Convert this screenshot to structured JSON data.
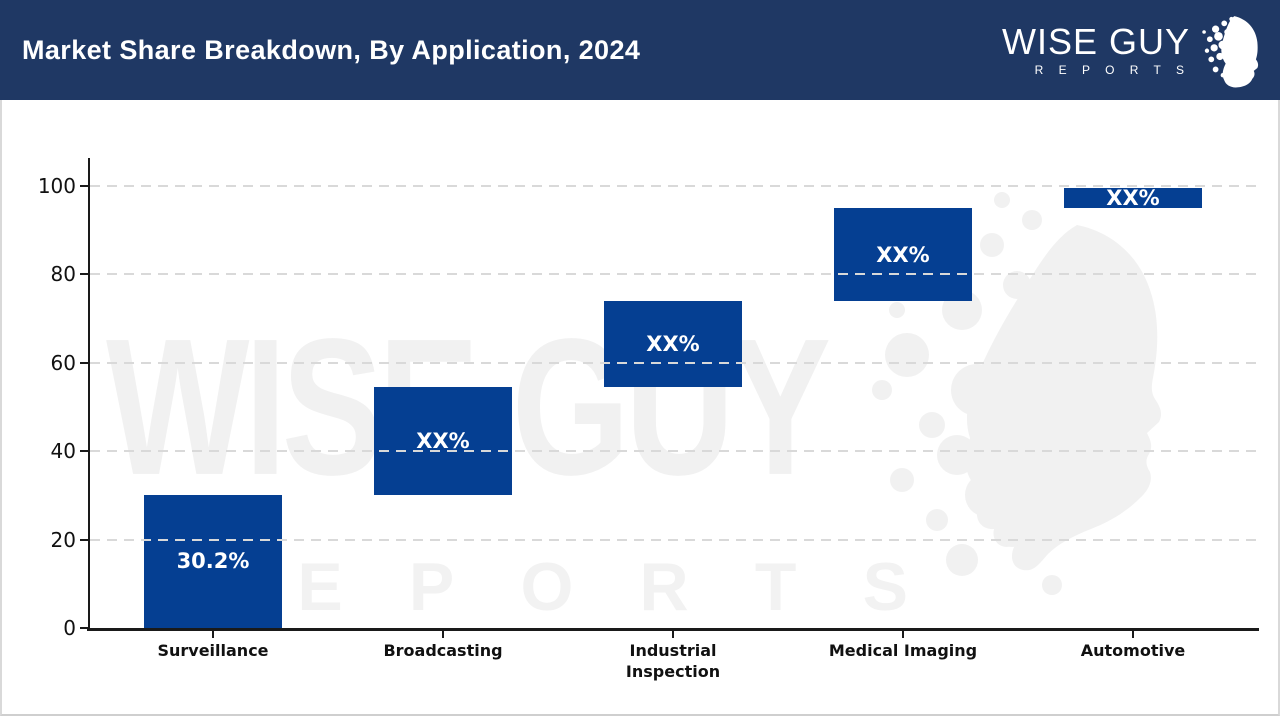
{
  "header": {
    "title": "Market Share Breakdown, By Application, 2024",
    "bg_color": "#1f3864",
    "logo": {
      "line1": "WISE GUY",
      "line2": "R E P O R T S"
    }
  },
  "watermark": {
    "line1": "WISE GUY",
    "line2_letters": "REPORTS"
  },
  "chart_data": {
    "type": "bar",
    "subtype": "waterfall",
    "title": "Market Share Breakdown, By Application, 2024",
    "categories": [
      {
        "lines": [
          "Surveillance"
        ]
      },
      {
        "lines": [
          "Broadcasting"
        ]
      },
      {
        "lines": [
          "Industrial",
          "Inspection"
        ]
      },
      {
        "lines": [
          "Medical Imaging"
        ]
      },
      {
        "lines": [
          "Automotive"
        ]
      }
    ],
    "segments": [
      {
        "category": "Surveillance",
        "start": 0,
        "end": 30.2,
        "label": "30.2%"
      },
      {
        "category": "Broadcasting",
        "start": 30.2,
        "end": 54.5,
        "label": "XX%"
      },
      {
        "category": "Industrial Inspection",
        "start": 54.5,
        "end": 74.0,
        "label": "XX%"
      },
      {
        "category": "Medical Imaging",
        "start": 74.0,
        "end": 95.0,
        "label": "XX%"
      },
      {
        "category": "Automotive",
        "start": 95.0,
        "end": 99.6,
        "label": "XX%"
      }
    ],
    "yticks": [
      0,
      20,
      40,
      60,
      80,
      100
    ],
    "ylim": [
      0,
      106
    ],
    "grid": "horizontal dashed, drawn above bars",
    "legend": "none",
    "bar_color": "#053f92",
    "bar_label_color": "#ffffff",
    "axis_color": "#1a1a1a"
  }
}
